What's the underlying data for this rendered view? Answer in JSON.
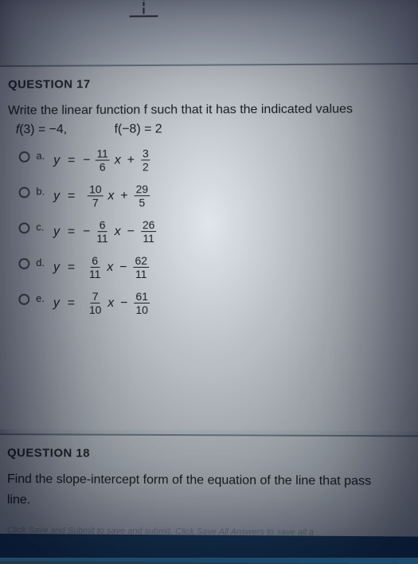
{
  "q17": {
    "title": "QUESTION 17",
    "prompt": "Write the linear function f such that it has the indicated values",
    "given1_f": "f",
    "given1": "(3) = −4,",
    "given2": "f(−8) = 2",
    "options": [
      {
        "label": "a.",
        "sign": "−",
        "num1": "11",
        "den1": "6",
        "op": "+",
        "num2": "3",
        "den2": "2"
      },
      {
        "label": "b.",
        "sign": "",
        "num1": "10",
        "den1": "7",
        "op": "+",
        "num2": "29",
        "den2": "5"
      },
      {
        "label": "c.",
        "sign": "−",
        "num1": "6",
        "den1": "11",
        "op": "−",
        "num2": "26",
        "den2": "11"
      },
      {
        "label": "d.",
        "sign": "",
        "num1": "6",
        "den1": "11",
        "op": "−",
        "num2": "62",
        "den2": "11"
      },
      {
        "label": "e.",
        "sign": "",
        "num1": "7",
        "den1": "10",
        "op": "−",
        "num2": "61",
        "den2": "10"
      }
    ]
  },
  "q18": {
    "title": "QUESTION 18",
    "prompt": "Find the slope-intercept form of the equation of the line that pass",
    "line2": "line.",
    "footer": "Click Save and Submit to save and submit. Click Save All Answers to save all a"
  },
  "colors": {
    "page_bg": "#e8edf2",
    "block_bg": "#f4f6f9",
    "border": "#8a9199",
    "text": "#111"
  }
}
